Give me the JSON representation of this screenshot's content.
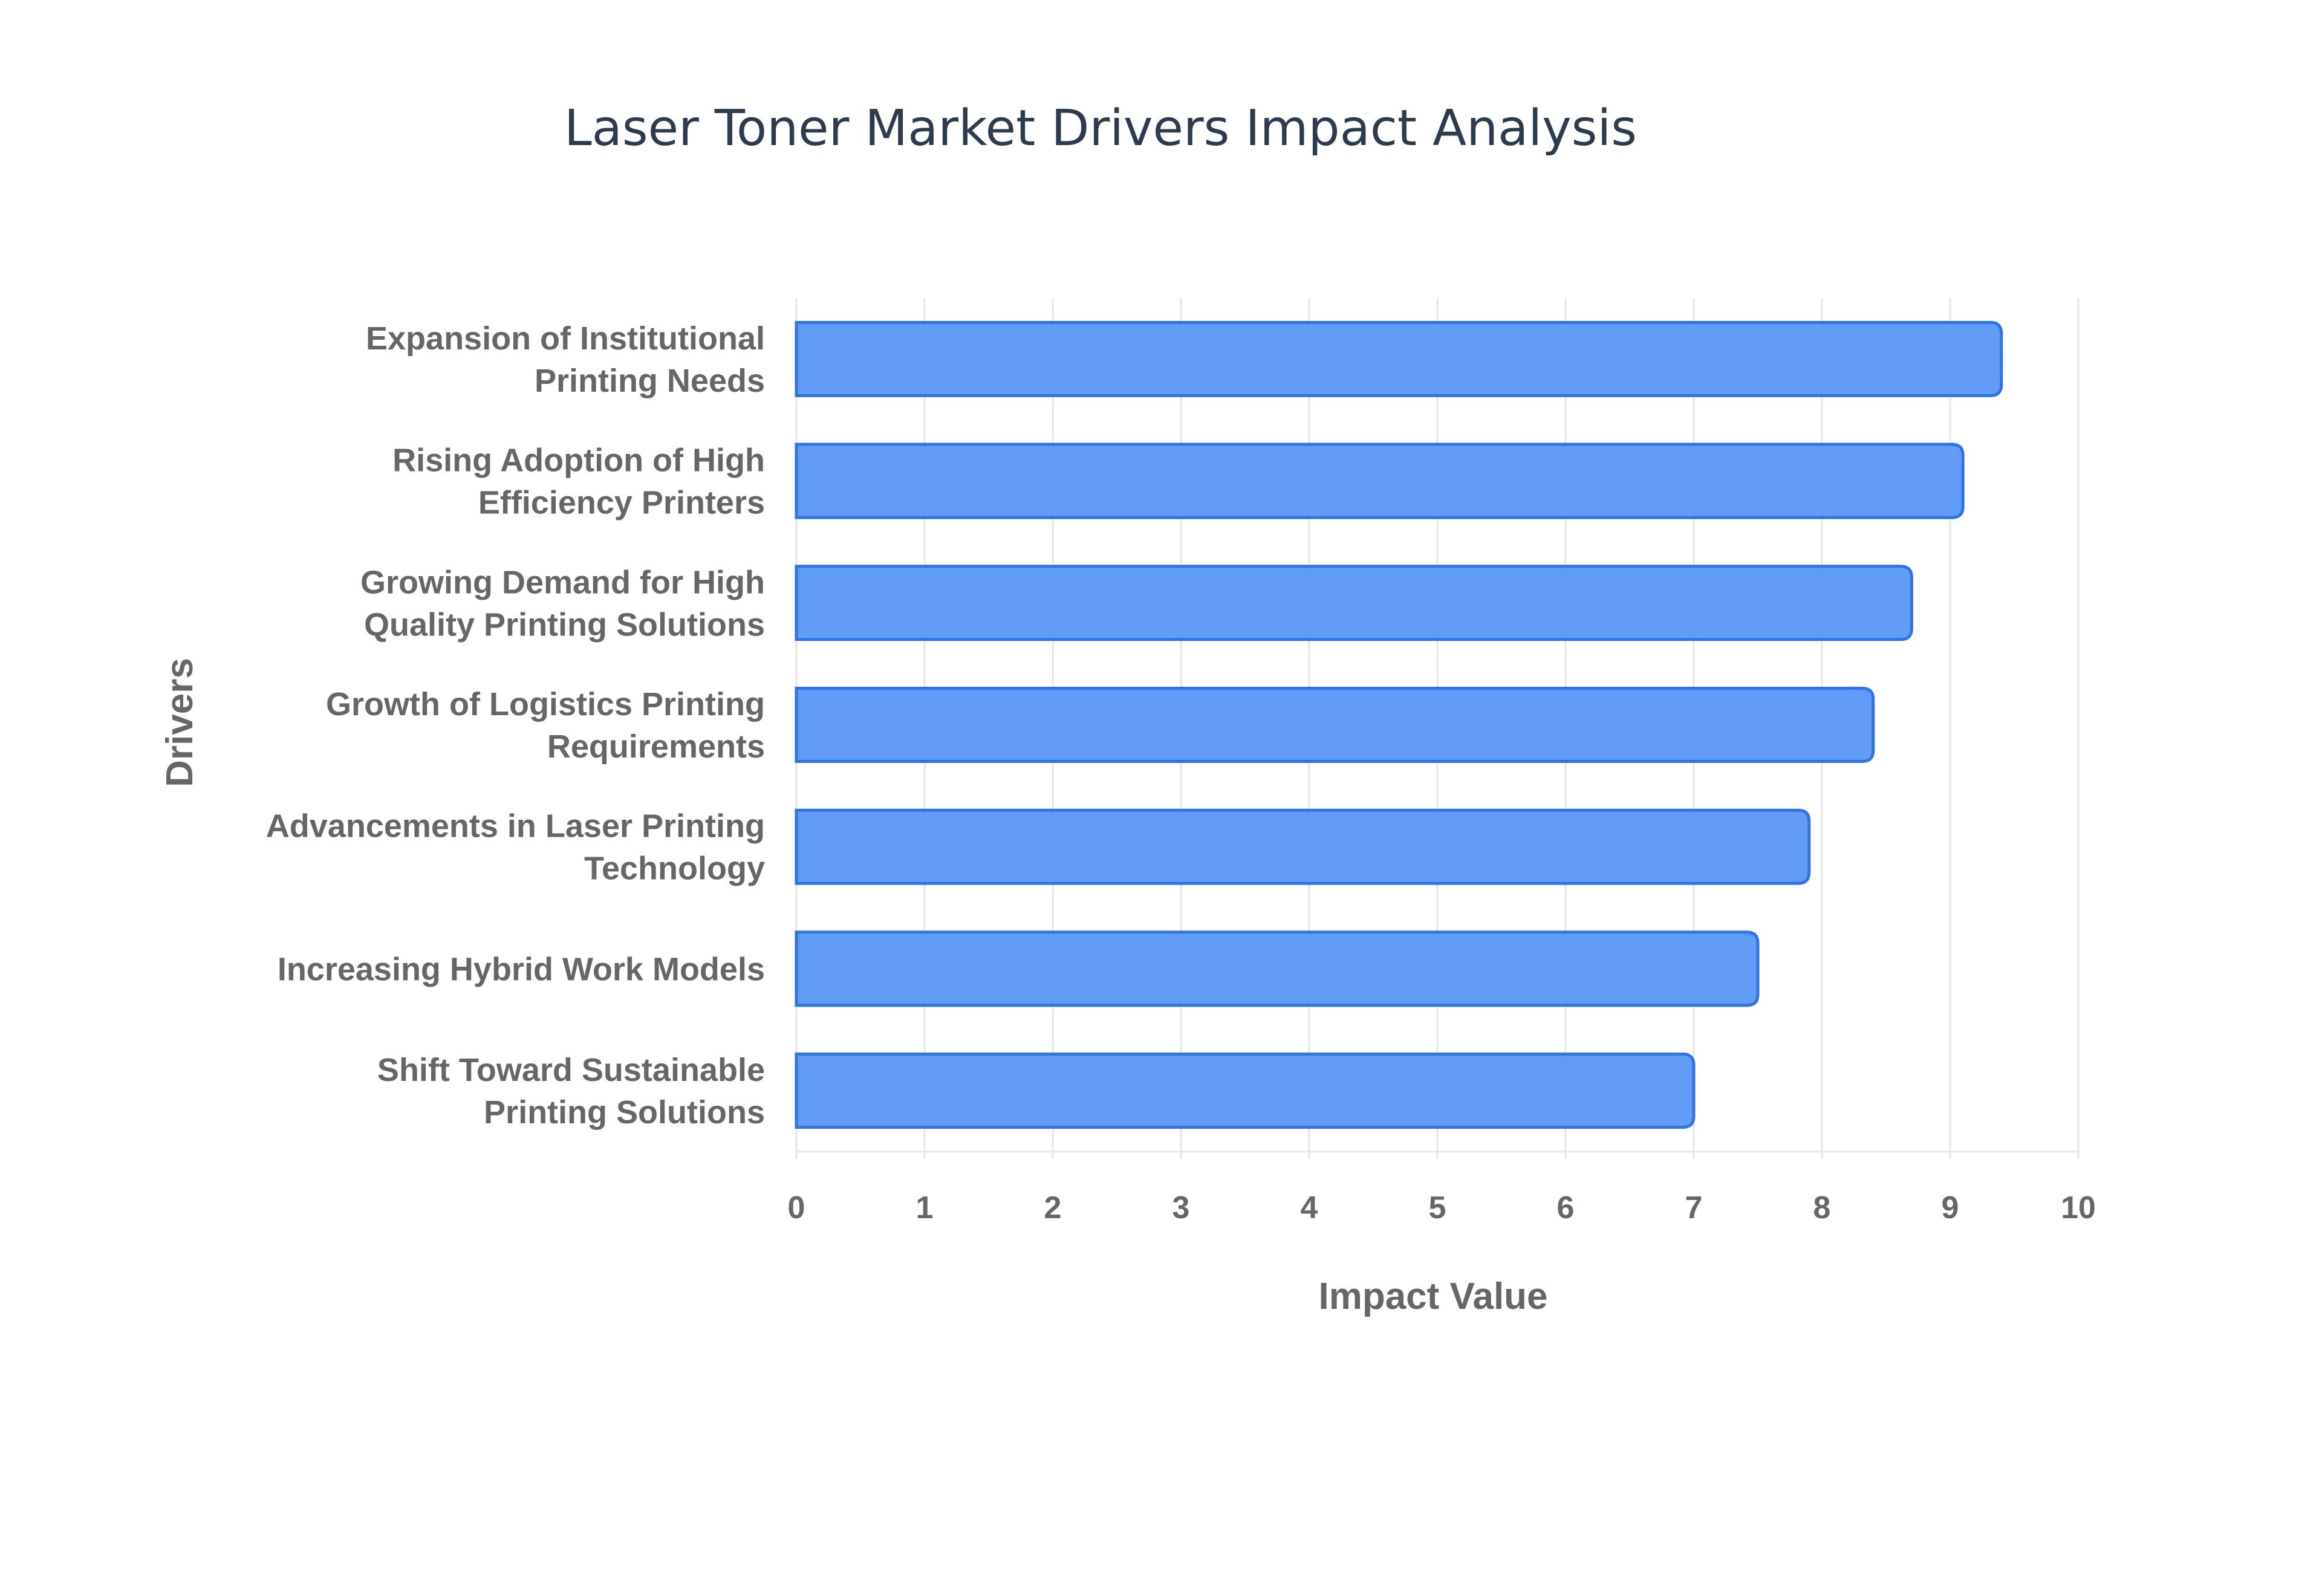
{
  "chart_data": {
    "type": "bar",
    "orientation": "horizontal",
    "title": "Laser Toner Market Drivers Impact Analysis",
    "xlabel": "Impact Value",
    "ylabel": "Drivers",
    "xlim": [
      0,
      10
    ],
    "x_ticks": [
      "0",
      "1",
      "2",
      "3",
      "4",
      "5",
      "6",
      "7",
      "8",
      "9",
      "10"
    ],
    "grid": true,
    "categories": [
      [
        "Expansion of Institutional",
        "Printing Needs"
      ],
      [
        "Rising Adoption of High",
        "Efficiency Printers"
      ],
      [
        "Growing Demand for High",
        "Quality Printing Solutions"
      ],
      [
        "Growth of Logistics Printing",
        "Requirements"
      ],
      [
        "Advancements in Laser Printing",
        "Technology"
      ],
      [
        "Increasing Hybrid Work Models"
      ],
      [
        "Shift Toward Sustainable",
        "Printing Solutions"
      ]
    ],
    "values": [
      9.4,
      9.1,
      8.7,
      8.4,
      7.9,
      7.5,
      7.0
    ],
    "colors": {
      "bar_fill": "#4d8ef5",
      "bar_stroke": "#2f74e6",
      "grid": "#e6e6e6",
      "text": "#666666",
      "title": "#2d3b4f"
    }
  }
}
